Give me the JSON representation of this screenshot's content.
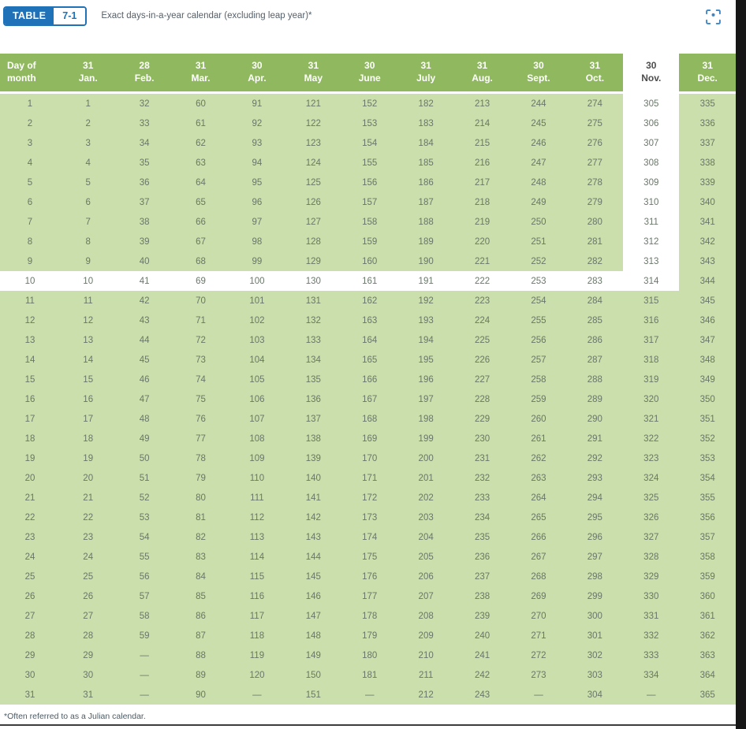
{
  "header": {
    "tag": "TABLE",
    "number": "7-1",
    "caption": "Exact days-in-a-year calendar (excluding leap year)*"
  },
  "table": {
    "day_column_header": [
      "Day of",
      "month"
    ],
    "months": [
      {
        "days": "31",
        "name": "Jan."
      },
      {
        "days": "28",
        "name": "Feb."
      },
      {
        "days": "31",
        "name": "Mar."
      },
      {
        "days": "30",
        "name": "Apr."
      },
      {
        "days": "31",
        "name": "May"
      },
      {
        "days": "30",
        "name": "June"
      },
      {
        "days": "31",
        "name": "July"
      },
      {
        "days": "31",
        "name": "Aug."
      },
      {
        "days": "30",
        "name": "Sept."
      },
      {
        "days": "31",
        "name": "Oct."
      },
      {
        "days": "30",
        "name": "Nov."
      },
      {
        "days": "31",
        "name": "Dec."
      }
    ],
    "rows": [
      [
        "1",
        "1",
        "32",
        "60",
        "91",
        "121",
        "152",
        "182",
        "213",
        "244",
        "274",
        "305",
        "335"
      ],
      [
        "2",
        "2",
        "33",
        "61",
        "92",
        "122",
        "153",
        "183",
        "214",
        "245",
        "275",
        "306",
        "336"
      ],
      [
        "3",
        "3",
        "34",
        "62",
        "93",
        "123",
        "154",
        "184",
        "215",
        "246",
        "276",
        "307",
        "337"
      ],
      [
        "4",
        "4",
        "35",
        "63",
        "94",
        "124",
        "155",
        "185",
        "216",
        "247",
        "277",
        "308",
        "338"
      ],
      [
        "5",
        "5",
        "36",
        "64",
        "95",
        "125",
        "156",
        "186",
        "217",
        "248",
        "278",
        "309",
        "339"
      ],
      [
        "6",
        "6",
        "37",
        "65",
        "96",
        "126",
        "157",
        "187",
        "218",
        "249",
        "279",
        "310",
        "340"
      ],
      [
        "7",
        "7",
        "38",
        "66",
        "97",
        "127",
        "158",
        "188",
        "219",
        "250",
        "280",
        "311",
        "341"
      ],
      [
        "8",
        "8",
        "39",
        "67",
        "98",
        "128",
        "159",
        "189",
        "220",
        "251",
        "281",
        "312",
        "342"
      ],
      [
        "9",
        "9",
        "40",
        "68",
        "99",
        "129",
        "160",
        "190",
        "221",
        "252",
        "282",
        "313",
        "343"
      ],
      [
        "10",
        "10",
        "41",
        "69",
        "100",
        "130",
        "161",
        "191",
        "222",
        "253",
        "283",
        "314",
        "344"
      ],
      [
        "11",
        "11",
        "42",
        "70",
        "101",
        "131",
        "162",
        "192",
        "223",
        "254",
        "284",
        "315",
        "345"
      ],
      [
        "12",
        "12",
        "43",
        "71",
        "102",
        "132",
        "163",
        "193",
        "224",
        "255",
        "285",
        "316",
        "346"
      ],
      [
        "13",
        "13",
        "44",
        "72",
        "103",
        "133",
        "164",
        "194",
        "225",
        "256",
        "286",
        "317",
        "347"
      ],
      [
        "14",
        "14",
        "45",
        "73",
        "104",
        "134",
        "165",
        "195",
        "226",
        "257",
        "287",
        "318",
        "348"
      ],
      [
        "15",
        "15",
        "46",
        "74",
        "105",
        "135",
        "166",
        "196",
        "227",
        "258",
        "288",
        "319",
        "349"
      ],
      [
        "16",
        "16",
        "47",
        "75",
        "106",
        "136",
        "167",
        "197",
        "228",
        "259",
        "289",
        "320",
        "350"
      ],
      [
        "17",
        "17",
        "48",
        "76",
        "107",
        "137",
        "168",
        "198",
        "229",
        "260",
        "290",
        "321",
        "351"
      ],
      [
        "18",
        "18",
        "49",
        "77",
        "108",
        "138",
        "169",
        "199",
        "230",
        "261",
        "291",
        "322",
        "352"
      ],
      [
        "19",
        "19",
        "50",
        "78",
        "109",
        "139",
        "170",
        "200",
        "231",
        "262",
        "292",
        "323",
        "353"
      ],
      [
        "20",
        "20",
        "51",
        "79",
        "110",
        "140",
        "171",
        "201",
        "232",
        "263",
        "293",
        "324",
        "354"
      ],
      [
        "21",
        "21",
        "52",
        "80",
        "111",
        "141",
        "172",
        "202",
        "233",
        "264",
        "294",
        "325",
        "355"
      ],
      [
        "22",
        "22",
        "53",
        "81",
        "112",
        "142",
        "173",
        "203",
        "234",
        "265",
        "295",
        "326",
        "356"
      ],
      [
        "23",
        "23",
        "54",
        "82",
        "113",
        "143",
        "174",
        "204",
        "235",
        "266",
        "296",
        "327",
        "357"
      ],
      [
        "24",
        "24",
        "55",
        "83",
        "114",
        "144",
        "175",
        "205",
        "236",
        "267",
        "297",
        "328",
        "358"
      ],
      [
        "25",
        "25",
        "56",
        "84",
        "115",
        "145",
        "176",
        "206",
        "237",
        "268",
        "298",
        "329",
        "359"
      ],
      [
        "26",
        "26",
        "57",
        "85",
        "116",
        "146",
        "177",
        "207",
        "238",
        "269",
        "299",
        "330",
        "360"
      ],
      [
        "27",
        "27",
        "58",
        "86",
        "117",
        "147",
        "178",
        "208",
        "239",
        "270",
        "300",
        "331",
        "361"
      ],
      [
        "28",
        "28",
        "59",
        "87",
        "118",
        "148",
        "179",
        "209",
        "240",
        "271",
        "301",
        "332",
        "362"
      ],
      [
        "29",
        "29",
        "—",
        "88",
        "119",
        "149",
        "180",
        "210",
        "241",
        "272",
        "302",
        "333",
        "363"
      ],
      [
        "30",
        "30",
        "—",
        "89",
        "120",
        "150",
        "181",
        "211",
        "242",
        "273",
        "303",
        "334",
        "364"
      ],
      [
        "31",
        "31",
        "—",
        "90",
        "—",
        "151",
        "—",
        "212",
        "243",
        "—",
        "304",
        "—",
        "365"
      ]
    ],
    "highlight": {
      "month": "Nov.",
      "day_of_month": 10,
      "result": "314"
    }
  },
  "footnote": "*Often referred to as a Julian calendar.",
  "colors": {
    "header_green": "#90b95f",
    "body_green": "#cadfab",
    "highlight": "#ffffff",
    "accent_blue": "#1f71b8"
  }
}
